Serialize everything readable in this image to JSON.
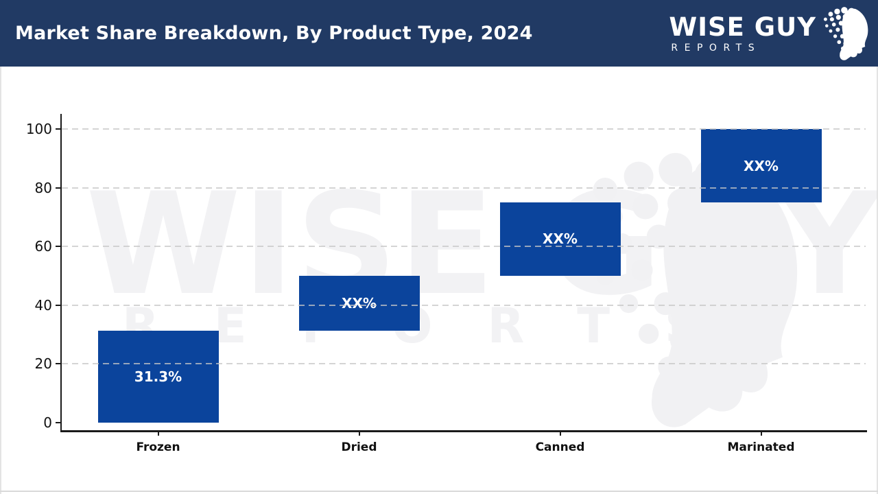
{
  "header": {
    "title": "Market Share Breakdown, By Product Type, 2024",
    "logo": {
      "line1": "WISE GUY",
      "line2": "REPORTS"
    }
  },
  "watermark": {
    "line1": "WISE GUY",
    "line2": "REPORTS"
  },
  "colors": {
    "header_bg": "#213a64",
    "bar_blue": "#0b449c",
    "axis_dark": "#1a1a1a",
    "grid_gray": "#d8d8d8",
    "watermark_gray": "#f2f2f4",
    "bar_label_white": "#ffffff"
  },
  "chart_data": {
    "type": "waterfall",
    "title": "Market Share Breakdown, By Product Type, 2024",
    "categories": [
      "Frozen",
      "Dried",
      "Canned",
      "Marinated"
    ],
    "segments": [
      {
        "category": "Frozen",
        "start": 0,
        "end": 31.3,
        "label": "31.3%"
      },
      {
        "category": "Dried",
        "start": 31.3,
        "end": 50.1,
        "label": "XX%"
      },
      {
        "category": "Canned",
        "start": 50.1,
        "end": 75.0,
        "label": "XX%"
      },
      {
        "category": "Marinated",
        "start": 75.0,
        "end": 100.0,
        "label": "XX%"
      }
    ],
    "values_displayed": [
      "31.3%",
      "XX%",
      "XX%",
      "XX%"
    ],
    "yticks": [
      0,
      20,
      40,
      60,
      80,
      100
    ],
    "ylim": [
      0,
      105
    ],
    "xlabel": "",
    "ylabel": "",
    "grid": "dashed-horizontal",
    "legend": "none",
    "bar_color": "#0b449c",
    "label_color": "#ffffff"
  }
}
